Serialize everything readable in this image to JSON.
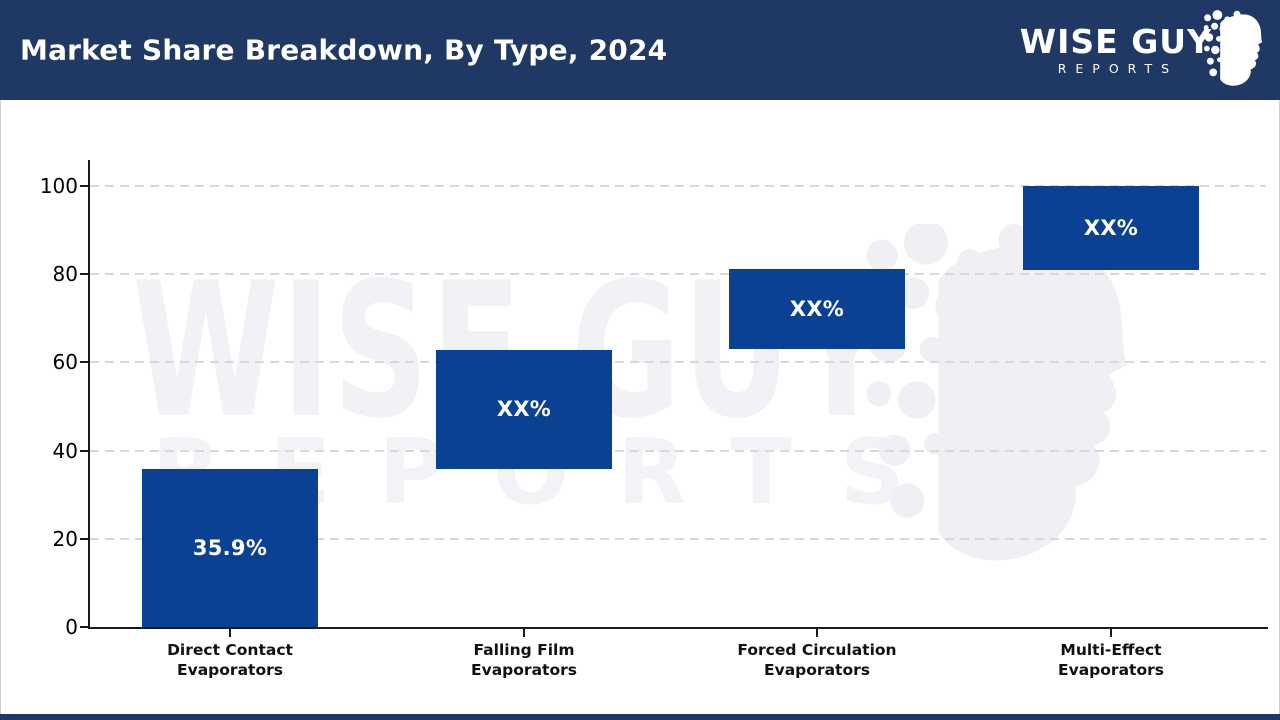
{
  "header": {
    "title": "Market Share Breakdown, By Type, 2024",
    "bg_color": "#203864",
    "logo": {
      "name": "WISE GUY",
      "tagline": "REPORTS"
    }
  },
  "watermark": {
    "line1": "WISE GUY",
    "line2": "REPORTS"
  },
  "chart_data": {
    "type": "bar",
    "subtype": "floating-waterfall",
    "title": "Market Share Breakdown, By Type, 2024",
    "categories": [
      [
        "Direct Contact",
        "Evaporators"
      ],
      [
        "Falling Film",
        "Evaporators"
      ],
      [
        "Forced Circulation",
        "Evaporators"
      ],
      [
        "Multi-Effect",
        "Evaporators"
      ]
    ],
    "segments": [
      {
        "start": 0,
        "end": 35.9,
        "label": "35.9%"
      },
      {
        "start": 35.9,
        "end": 62.8,
        "label": "XX%"
      },
      {
        "start": 63.0,
        "end": 81.2,
        "label": "XX%"
      },
      {
        "start": 81.0,
        "end": 100,
        "label": "XX%"
      }
    ],
    "ylim": [
      0,
      100
    ],
    "yticks": [
      0,
      20,
      40,
      60,
      80,
      100
    ],
    "grid": "horizontal-dashed",
    "legend": "none",
    "bar_color": "#0a4192",
    "bar_label_color": "#ffffff",
    "axis_color": "#1a1a1a",
    "gridline_color": "#d8d8d8",
    "footer_color": "#203864",
    "background": "#ffffff"
  }
}
